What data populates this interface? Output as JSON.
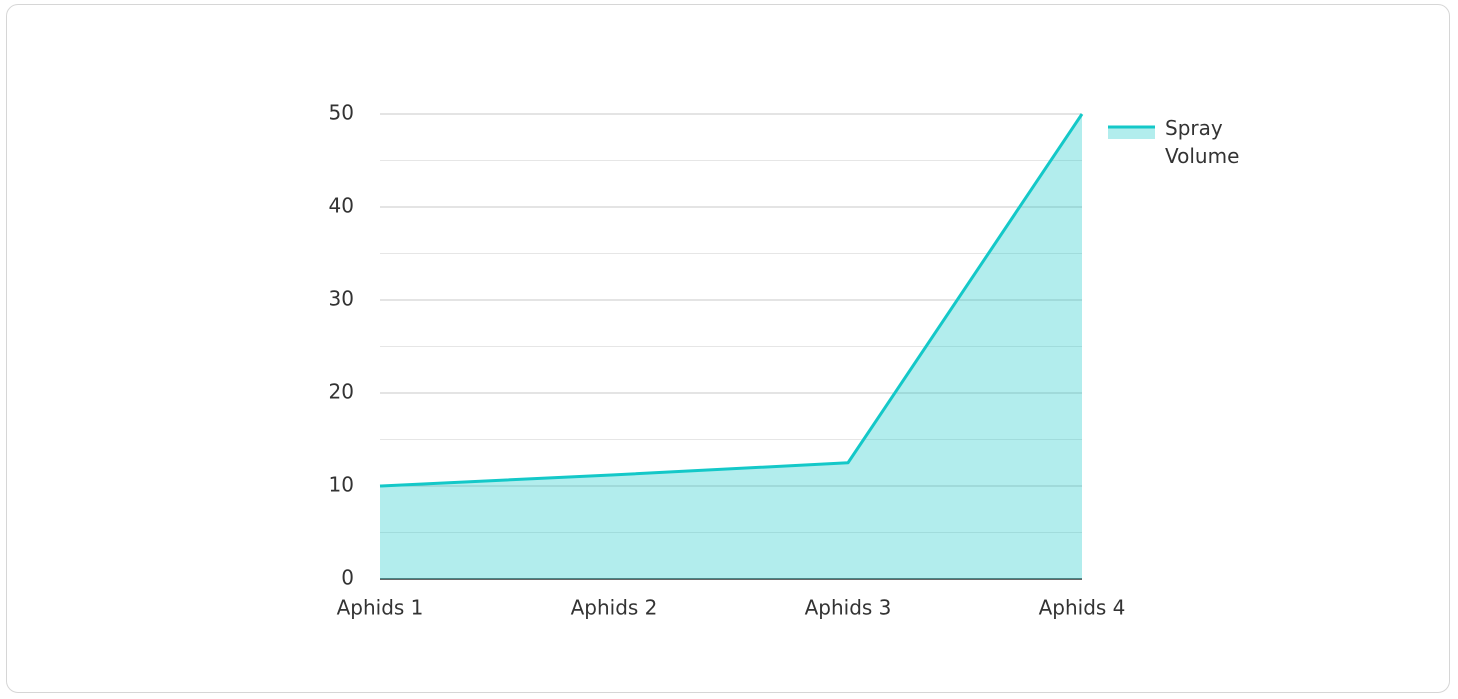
{
  "chart_data": {
    "type": "area",
    "categories": [
      "Aphids 1",
      "Aphids 2",
      "Aphids 3",
      "Aphids 4"
    ],
    "series": [
      {
        "name": "Spray Volume",
        "color": "#14c8c8",
        "values": [
          10,
          11.2,
          12.5,
          50
        ]
      }
    ],
    "ylim": [
      0,
      50
    ],
    "yticks": [
      0,
      10,
      20,
      30,
      40,
      50
    ],
    "minor_yticks": [
      5,
      15,
      25,
      35,
      45
    ],
    "grid": true,
    "legend": "right"
  }
}
